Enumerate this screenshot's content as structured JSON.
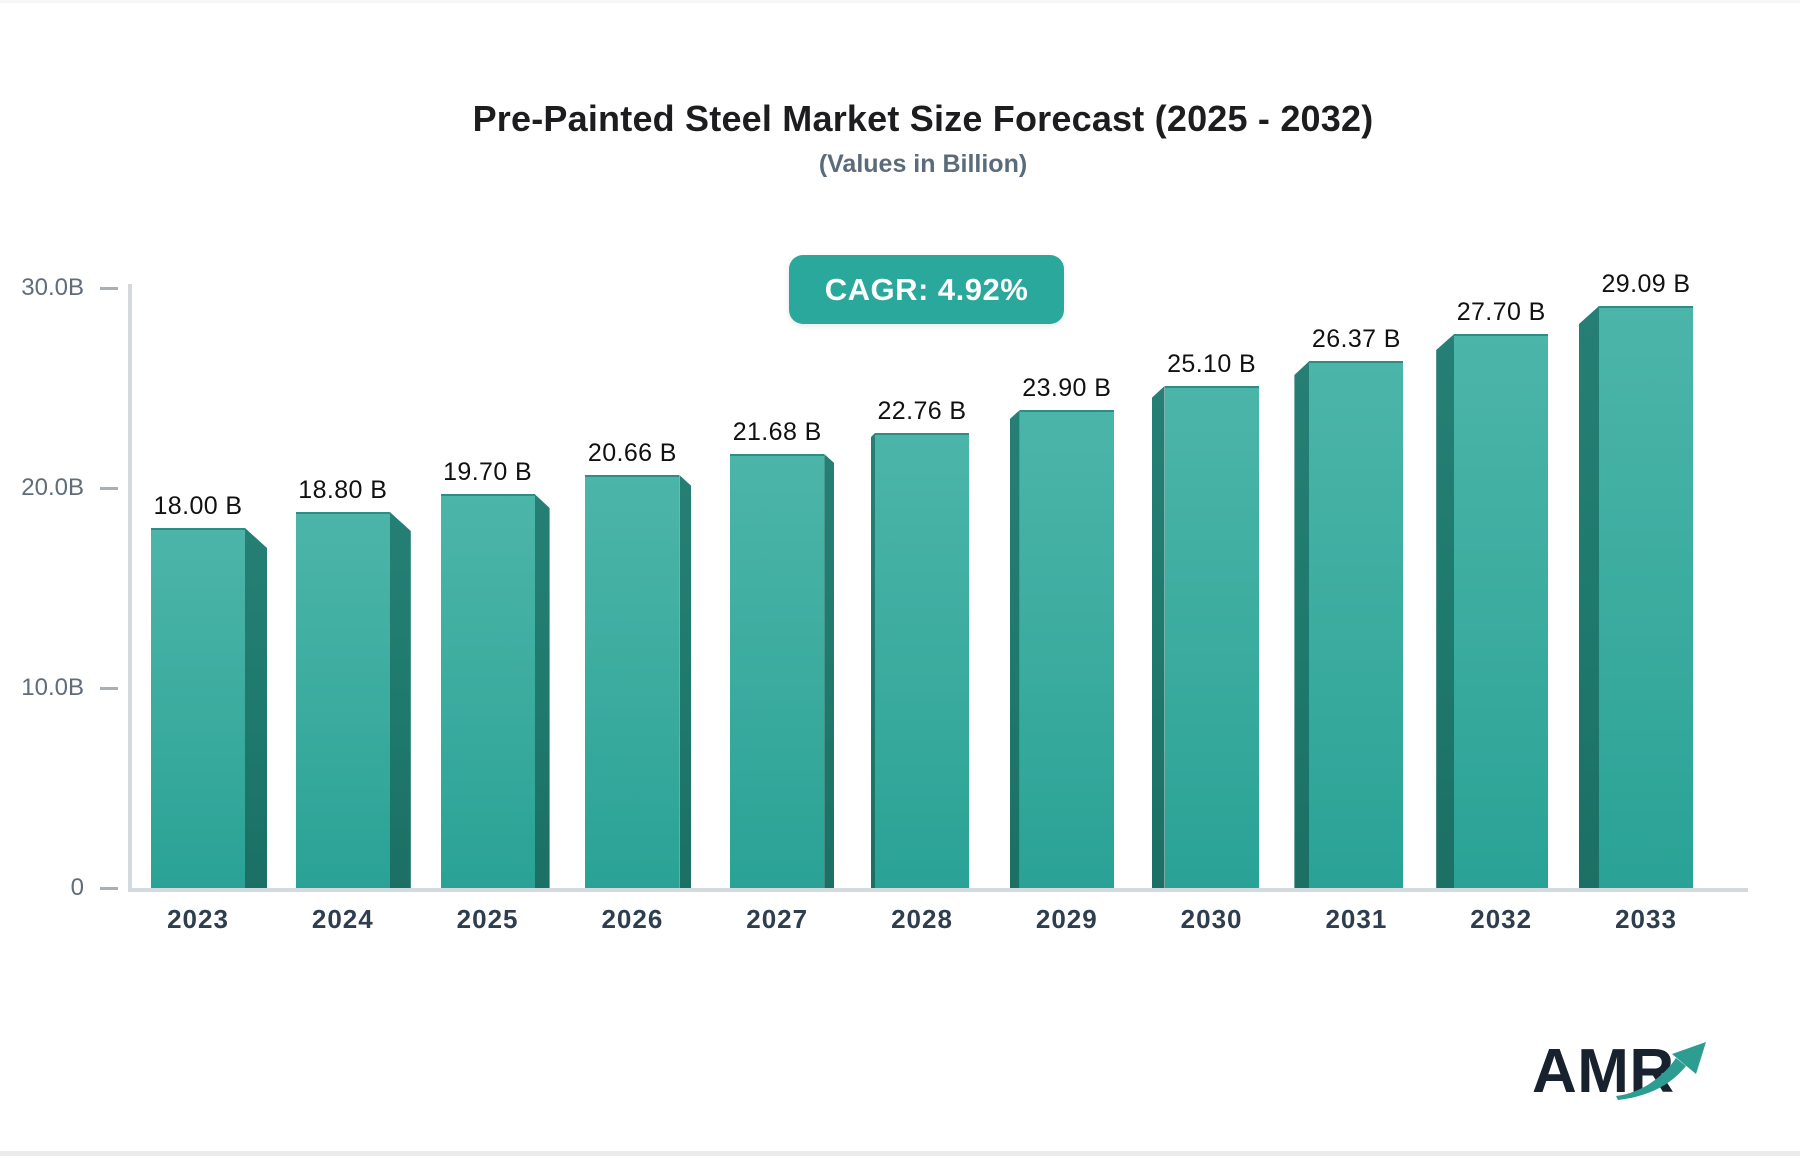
{
  "title": "Pre-Painted Steel Market Size Forecast (2025 - 2032)",
  "subtitle": "(Values in Billion)",
  "badge": {
    "label": "CAGR: 4.92%"
  },
  "logo": {
    "text": "AMR"
  },
  "colors": {
    "accent_teal": "#2aa89b",
    "bar_face_top": "#4cb5a9",
    "bar_face_bottom": "#29a295",
    "bar_side": "#1f7a6e",
    "axis_line": "#d4d9dd",
    "axis_label": "#5f6c7a",
    "x_label": "#2f3e4e",
    "title_text": "#1d1d1f",
    "subtitle_text": "#5b6b7b",
    "logo_text": "#18222f",
    "logo_arrow": "#2d9d92"
  },
  "chart_data": {
    "type": "bar",
    "title": "Pre-Painted Steel Market Size Forecast (2025 - 2032)",
    "subtitle": "(Values in Billion)",
    "xlabel": "",
    "ylabel": "",
    "categories": [
      "2023",
      "2024",
      "2025",
      "2026",
      "2027",
      "2028",
      "2029",
      "2030",
      "2031",
      "2032",
      "2033"
    ],
    "values": [
      18.0,
      18.8,
      19.7,
      20.66,
      21.68,
      22.76,
      23.9,
      25.1,
      26.37,
      27.7,
      29.09
    ],
    "value_labels": [
      "18.00 B",
      "18.80 B",
      "19.70 B",
      "20.66 B",
      "21.68 B",
      "22.76 B",
      "23.90 B",
      "25.10 B",
      "26.37 B",
      "27.70 B",
      "29.09 B"
    ],
    "unit": "Billion",
    "cagr": "4.92%",
    "ylim": [
      0,
      30
    ],
    "y_ticks": [
      {
        "value": 30,
        "label": "30.0B"
      },
      {
        "value": 20,
        "label": "20.0B"
      },
      {
        "value": 10,
        "label": "10.0B"
      },
      {
        "value": 0,
        "label": "0"
      }
    ],
    "grid": false,
    "legend": false
  }
}
